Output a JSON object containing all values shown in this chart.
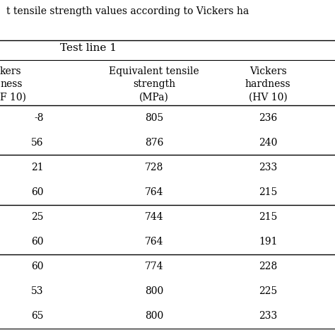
{
  "title": "t tensile strength values according to Vickers ha",
  "subheader": "Test line 1",
  "col1_header": [
    "kers",
    "ness",
    "F 10)"
  ],
  "col2_header": [
    "Equivalent tensile",
    "strength",
    "(MPa)"
  ],
  "col3_header": [
    "Vickers",
    "hardness",
    "(HV 10)"
  ],
  "rows": [
    [
      "-8",
      "805",
      "236"
    ],
    [
      "56",
      "876",
      "240"
    ],
    [
      "21",
      "728",
      "233"
    ],
    [
      "60",
      "764",
      "215"
    ],
    [
      "25",
      "744",
      "215"
    ],
    [
      "60",
      "764",
      "191"
    ],
    [
      "60",
      "774",
      "228"
    ],
    [
      "53",
      "800",
      "225"
    ],
    [
      "65",
      "800",
      "233"
    ]
  ],
  "group_separators_after": [
    1,
    3,
    5
  ],
  "background_color": "#ffffff",
  "text_color": "#000000",
  "font_size": 10,
  "title_font_size": 10
}
